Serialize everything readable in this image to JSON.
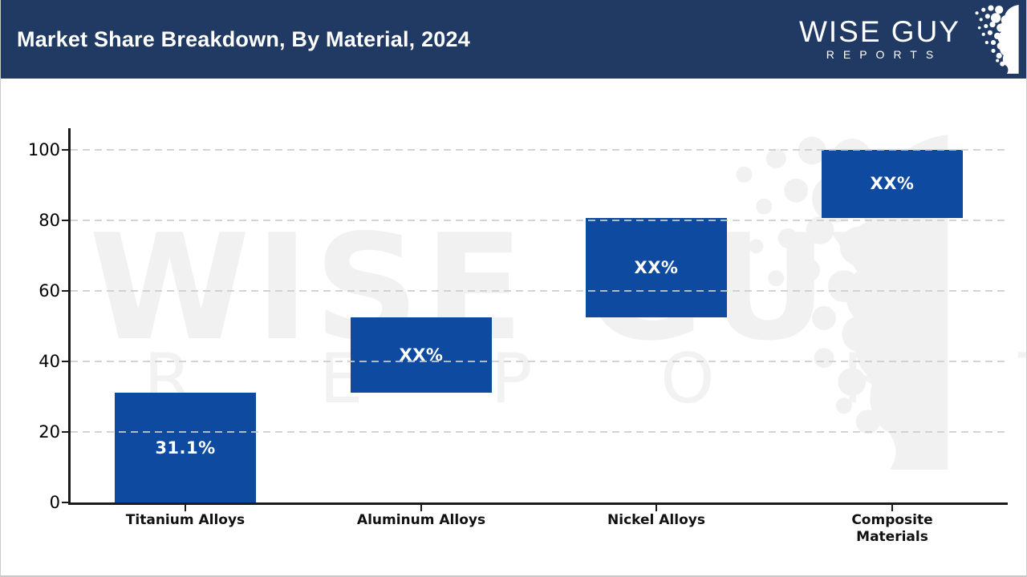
{
  "header": {
    "title": "Market Share Breakdown, By Material, 2024",
    "logo_primary": "WISE GUY",
    "logo_secondary": "REPORTS",
    "bg_color": "#213a64"
  },
  "watermark": {
    "primary": "WISE GUY",
    "secondary": "R E P O R T S"
  },
  "chart_data": {
    "type": "bar",
    "subtype": "waterfall",
    "title": "Market Share Breakdown, By Material, 2024",
    "categories": [
      "Titanium Alloys",
      "Aluminum Alloys",
      "Nickel Alloys",
      "Composite\nMaterials"
    ],
    "segments": [
      {
        "category": "Titanium Alloys",
        "start": 0,
        "end": 31.1,
        "label": "31.1%"
      },
      {
        "category": "Aluminum Alloys",
        "start": 31.1,
        "end": 52.4,
        "label": "XX%"
      },
      {
        "category": "Nickel Alloys",
        "start": 52.4,
        "end": 80.7,
        "label": "XX%"
      },
      {
        "category": "Composite Materials",
        "start": 80.7,
        "end": 100,
        "label": "XX%"
      }
    ],
    "yticks": [
      0,
      20,
      40,
      60,
      80,
      100
    ],
    "ylim": [
      0,
      100
    ],
    "grid": "dashed-horizontal",
    "legend": "none",
    "bar_color": "#0d4aa0",
    "bar_label_color": "#ffffff"
  }
}
